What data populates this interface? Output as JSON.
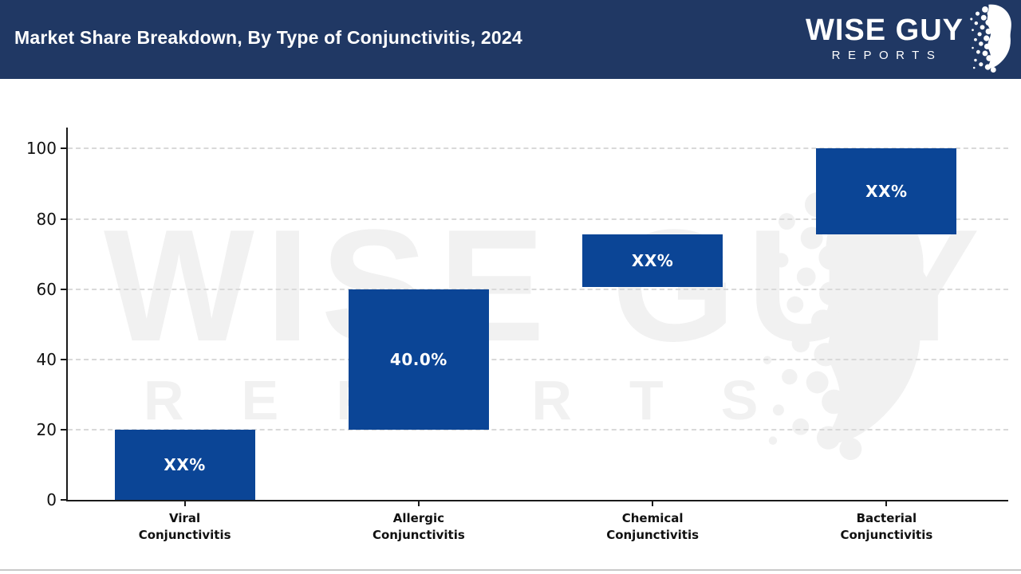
{
  "header": {
    "title": "Market Share Breakdown, By Type of Conjunctivitis, 2024",
    "logo": {
      "name": "WISE GUY",
      "sub": "REPORTS"
    }
  },
  "watermark": {
    "name": "WISE GUY",
    "sub": "REPORTS"
  },
  "colors": {
    "header_bg": "#203864",
    "bar": "#0b4596",
    "bar_label": "#ffffff",
    "grid": "#d9d9d9",
    "axis": "#1a1a1a",
    "text": "#111111",
    "watermark": "#f1f1f1",
    "bottom_rule": "#c9c9c9",
    "figure_bg": "#ffffff"
  },
  "chart_data": {
    "type": "bar",
    "variant": "floating-waterfall",
    "title": "Market Share Breakdown, By Type of Conjunctivitis, 2024",
    "categories": [
      "Viral Conjunctivitis",
      "Allergic Conjunctivitis",
      "Chemical Conjunctivitis",
      "Bacterial Conjunctivitis"
    ],
    "category_lines": [
      [
        "Viral",
        "Conjunctivitis"
      ],
      [
        "Allergic",
        "Conjunctivitis"
      ],
      [
        "Chemical",
        "Conjunctivitis"
      ],
      [
        "Bacterial",
        "Conjunctivitis"
      ]
    ],
    "segments": [
      {
        "category": "Viral Conjunctivitis",
        "start": 0,
        "end": 20,
        "label": "XX%"
      },
      {
        "category": "Allergic Conjunctivitis",
        "start": 20,
        "end": 60,
        "label": "40.0%"
      },
      {
        "category": "Chemical Conjunctivitis",
        "start": 60.5,
        "end": 75.5,
        "label": "XX%"
      },
      {
        "category": "Bacterial Conjunctivitis",
        "start": 75.5,
        "end": 100,
        "label": "XX%"
      }
    ],
    "yticks": [
      0,
      20,
      40,
      60,
      80,
      100
    ],
    "ylim": [
      0,
      106
    ],
    "xlabel": "",
    "ylabel": "",
    "grid": "horizontal-dashed",
    "legend": "none"
  }
}
